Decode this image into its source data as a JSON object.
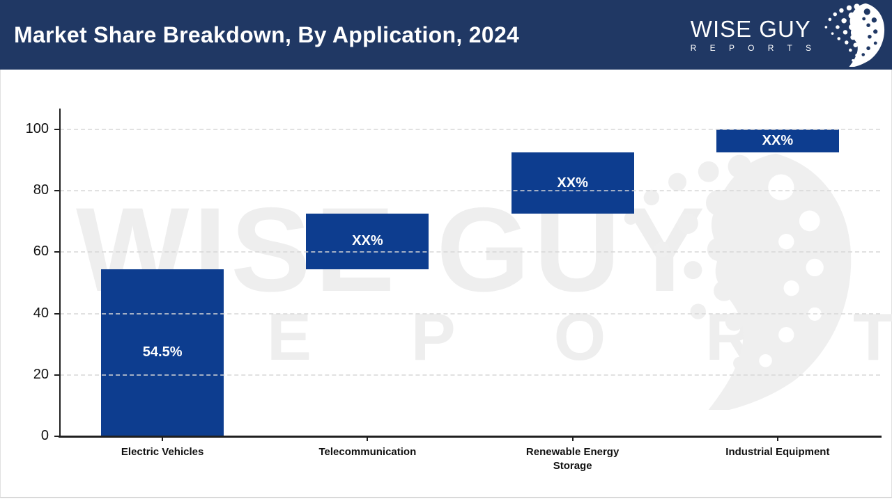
{
  "header": {
    "title": "Market Share Breakdown, By Application, 2024",
    "bg_color": "#203864",
    "text_color": "#ffffff",
    "logo": {
      "wordmark": "WISE GUY",
      "subtext": "R E P O R T S"
    }
  },
  "watermark": {
    "line1": "WISE GUY",
    "line2": "R E P O R T S"
  },
  "chart_data": {
    "type": "bar",
    "subtype": "waterfall-stacked",
    "title": "Market Share Breakdown, By Application, 2024",
    "categories": [
      "Electric Vehicles",
      "Telecommunication",
      "Renewable Energy Storage",
      "Industrial Equipment"
    ],
    "segments": [
      {
        "category": "Electric Vehicles",
        "start": 0,
        "end": 54.5,
        "label": "54.5%"
      },
      {
        "category": "Telecommunication",
        "start": 54.5,
        "end": 72.5,
        "label": "XX%"
      },
      {
        "category": "Renewable Energy Storage",
        "start": 72.5,
        "end": 92.5,
        "label": "XX%"
      },
      {
        "category": "Industrial Equipment",
        "start": 92.5,
        "end": 100,
        "label": "XX%"
      }
    ],
    "visible_bar_labels": [
      "54.5%",
      "XX%",
      "XX%",
      "XX%"
    ],
    "yticks": [
      0,
      20,
      40,
      60,
      80,
      100
    ],
    "ylim": [
      0,
      106
    ],
    "xlabel": "",
    "ylabel": "",
    "grid": "horizontal-dashed",
    "legend": "none",
    "bar_color": "#0d3d8f",
    "axis_color": "#1f1f1f",
    "grid_color": "#dcdcdc",
    "bar_label_color": "#ffffff"
  }
}
